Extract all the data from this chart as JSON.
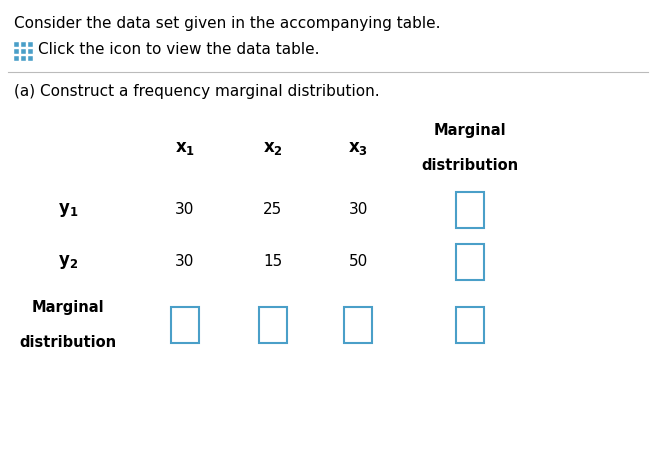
{
  "bg_color": "#ffffff",
  "header_text": "Consider the data set given in the accompanying table.",
  "icon_text": "Click the icon to view the data table.",
  "section_text": "(a) Construct a frequency marginal distribution.",
  "box_color": "#4a9fc8",
  "text_color": "#000000",
  "icon_color": "#4a9fc8",
  "data": [
    [
      30,
      25,
      30
    ],
    [
      30,
      15,
      50
    ]
  ],
  "fig_width": 6.56,
  "fig_height": 4.58,
  "dpi": 100
}
